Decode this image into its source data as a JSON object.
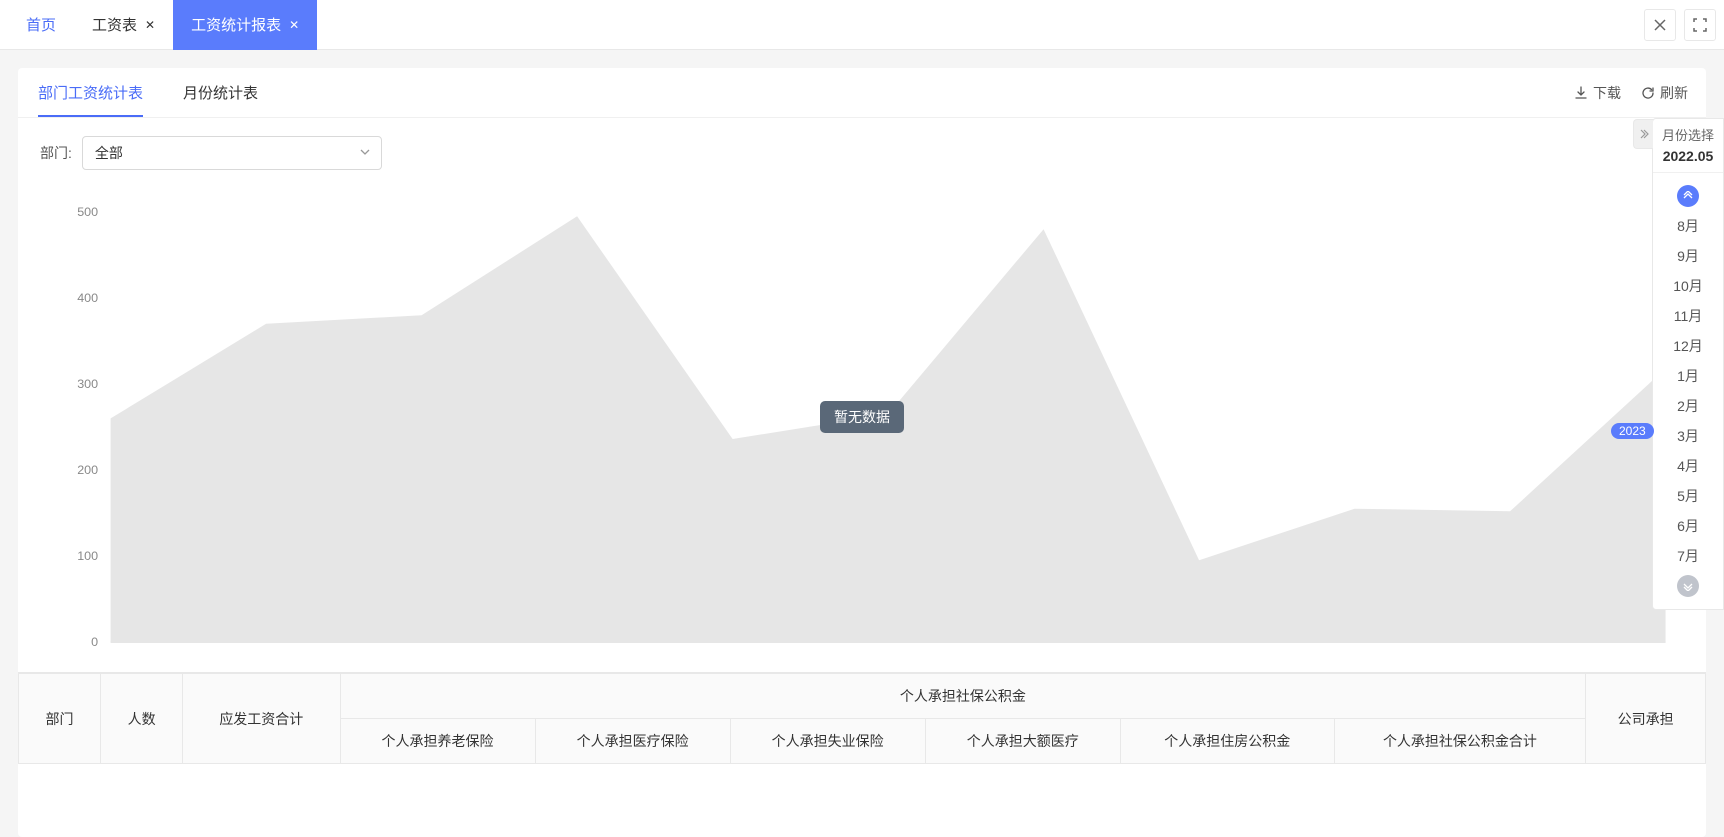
{
  "top_tabs": {
    "home": "首页",
    "tab1": "工资表",
    "tab2": "工资统计报表"
  },
  "sub_tabs": {
    "tab1": "部门工资统计表",
    "tab2": "月份统计表"
  },
  "actions": {
    "download": "下载",
    "refresh": "刷新"
  },
  "filter": {
    "label": "部门:",
    "value": "全部"
  },
  "chart": {
    "type": "area",
    "no_data_text": "暂无数据",
    "ylim": [
      0,
      500
    ],
    "ytick_step": 100,
    "yticks": [
      "0",
      "100",
      "200",
      "300",
      "400",
      "500"
    ],
    "fill_color": "#e6e6e6",
    "background_color": "#ffffff",
    "axis_color": "#cccccc",
    "values": [
      260,
      370,
      380,
      495,
      236,
      265,
      480,
      95,
      155,
      152,
      318
    ],
    "label_fontsize": 12,
    "label_color": "#888888"
  },
  "table": {
    "columns_row1": [
      "部门",
      "人数",
      "应发工资合计"
    ],
    "group_header": "个人承担社保公积金",
    "sub_columns": [
      "个人承担养老保险",
      "个人承担医疗保险",
      "个人承担失业保险",
      "个人承担大额医疗",
      "个人承担住房公积金",
      "个人承担社保公积金合计"
    ],
    "next_column_partial": "公司承担"
  },
  "month_panel": {
    "title": "月份选择",
    "selected": "2022.05",
    "year_badge": "2023",
    "items": [
      "8月",
      "9月",
      "10月",
      "11月",
      "12月",
      "1月",
      "2月",
      "3月",
      "4月",
      "5月",
      "6月",
      "7月"
    ]
  }
}
